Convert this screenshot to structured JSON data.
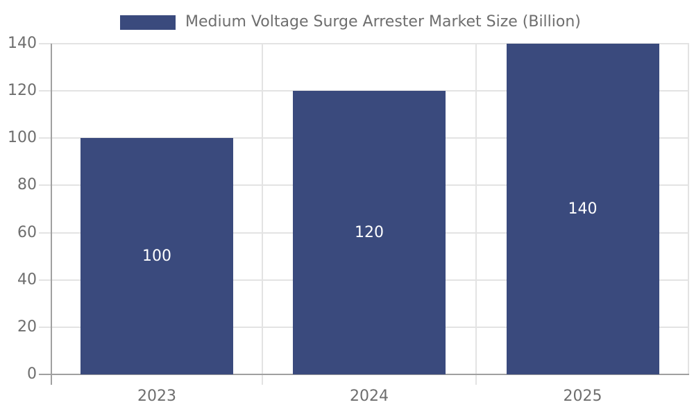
{
  "legend": {
    "label": "Medium Voltage Surge Arrester Market Size (Billion)"
  },
  "chart_data": {
    "type": "bar",
    "title": "Medium Voltage Surge Arrester Market Size (Billion)",
    "categories": [
      "2023",
      "2024",
      "2025"
    ],
    "values": [
      100,
      120,
      140
    ],
    "bar_labels": [
      "100",
      "120",
      "140"
    ],
    "xlabel": "",
    "ylabel": "",
    "ylim": [
      0,
      140
    ],
    "yticks": [
      0,
      20,
      40,
      60,
      80,
      100,
      120,
      140
    ],
    "grid": true,
    "legend_position": "top",
    "colors": {
      "bar": "#3A4A7D",
      "grid": "#E3E3E3",
      "axis": "#A0A0A0",
      "tick_text": "#6E6E6E",
      "legend_text": "#6E6E6E",
      "bar_label_text": "#FFFFFF",
      "background": "#FFFFFF"
    }
  }
}
